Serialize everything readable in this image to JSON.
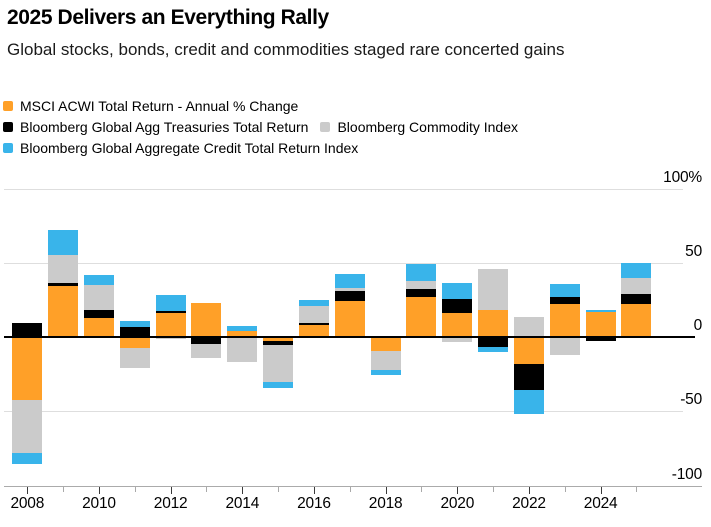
{
  "header": {
    "title": "2025 Delivers an Everything Rally",
    "subtitle": "Global stocks, bonds, credit and commodities staged rare concerted gains"
  },
  "legend": {
    "items": [
      {
        "key": "msci_acwi",
        "label": "MSCI ACWI Total Return - Annual % Change",
        "color": "#FFA028"
      },
      {
        "key": "treasuries",
        "label": "Bloomberg Global Agg Treasuries Total Return",
        "color": "#000000"
      },
      {
        "key": "commodity",
        "label": "Bloomberg Commodity Index",
        "color": "#CBCBCB"
      },
      {
        "key": "credit",
        "label": "Bloomberg Global Aggregate Credit Total Return Index",
        "color": "#39B4EA"
      }
    ]
  },
  "chart_data": {
    "type": "bar",
    "stacked": true,
    "title": "2025 Delivers an Everything Rally",
    "subtitle": "Global stocks, bonds, credit and commodities staged rare concerted gains",
    "unit": "%",
    "grid": true,
    "legend_position": "top",
    "x": [
      2008,
      2009,
      2010,
      2011,
      2012,
      2013,
      2014,
      2015,
      2016,
      2017,
      2018,
      2019,
      2020,
      2021,
      2022,
      2023,
      2024,
      2025
    ],
    "series": [
      {
        "key": "msci_acwi",
        "name": "MSCI ACWI Total Return - Annual % Change",
        "color": "#FFA028",
        "values": [
          -42.2,
          34.6,
          12.7,
          -7.3,
          16.1,
          22.8,
          4.2,
          -2.4,
          7.9,
          24.0,
          -9.4,
          26.6,
          16.3,
          18.5,
          -18.4,
          22.2,
          17.0,
          22.0
        ]
      },
      {
        "key": "treasuries",
        "name": "Bloomberg Global Agg Treasuries Total Return",
        "color": "#000000",
        "values": [
          9.5,
          2.0,
          5.7,
          6.4,
          1.5,
          -4.5,
          0,
          -3.3,
          1.3,
          7.3,
          0,
          5.9,
          9.5,
          -6.5,
          -17.0,
          4.7,
          -3.0,
          7.0
        ]
      },
      {
        "key": "commodity",
        "name": "Bloomberg Commodity Index",
        "color": "#CBCBCB",
        "values": [
          -36.0,
          18.9,
          16.8,
          -13.3,
          -1.1,
          -9.5,
          -17.0,
          -24.7,
          11.8,
          1.7,
          -12.5,
          5.4,
          -3.5,
          27.1,
          13.5,
          -12.0,
          0,
          10.5
        ]
      },
      {
        "key": "credit",
        "name": "Bloomberg Global Aggregate Credit Total Return Index",
        "color": "#39B4EA",
        "values": [
          -7.5,
          16.5,
          6.5,
          4.7,
          10.5,
          0,
          3.0,
          -3.8,
          4.0,
          9.3,
          -3.6,
          11.5,
          10.4,
          -3.8,
          -16.7,
          8.5,
          1.2,
          10.5
        ]
      }
    ],
    "y_axis": {
      "range": [
        -100,
        100
      ],
      "ticks": [
        100,
        50,
        0,
        -50,
        -100
      ],
      "tick_labels": [
        "100%",
        "50",
        "0",
        "-50",
        "-100"
      ]
    },
    "x_axis": {
      "label_years": [
        2008,
        2010,
        2012,
        2014,
        2016,
        2018,
        2020,
        2022,
        2024
      ]
    }
  }
}
